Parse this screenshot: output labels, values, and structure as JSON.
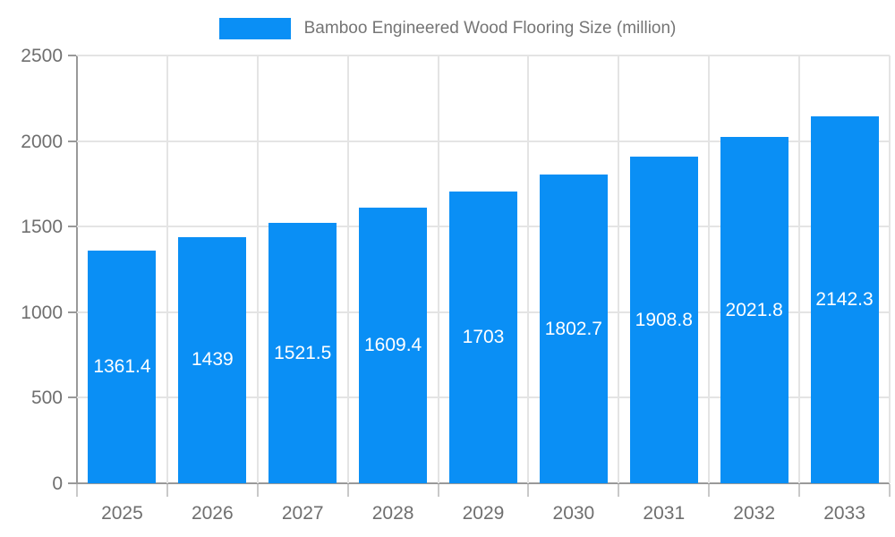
{
  "chart_data": {
    "type": "bar",
    "title": "Bamboo Engineered Wood Flooring Size (million)",
    "categories": [
      "2025",
      "2026",
      "2027",
      "2028",
      "2029",
      "2030",
      "2031",
      "2032",
      "2033"
    ],
    "values": [
      1361.4,
      1439,
      1521.5,
      1609.4,
      1703,
      1802.7,
      1908.8,
      2021.8,
      2142.3
    ],
    "value_labels": [
      "1361.4",
      "1439",
      "1521.5",
      "1609.4",
      "1703",
      "1802.7",
      "1908.8",
      "2021.8",
      "2142.3"
    ],
    "xlabel": "",
    "ylabel": "",
    "ylim": [
      0,
      2500
    ],
    "y_ticks": [
      0,
      500,
      1000,
      1500,
      2000,
      2500
    ],
    "grid": true,
    "legend_position": "top",
    "colors": {
      "bar": "#0a8ff5",
      "value_text": "#ffffff",
      "axis_line": "#999999",
      "grid_line": "#e4e4e4",
      "tick_text": "#6f6f6f",
      "legend_text": "#757575"
    }
  },
  "legend": {
    "label": "Bamboo Engineered Wood Flooring Size (million)"
  }
}
